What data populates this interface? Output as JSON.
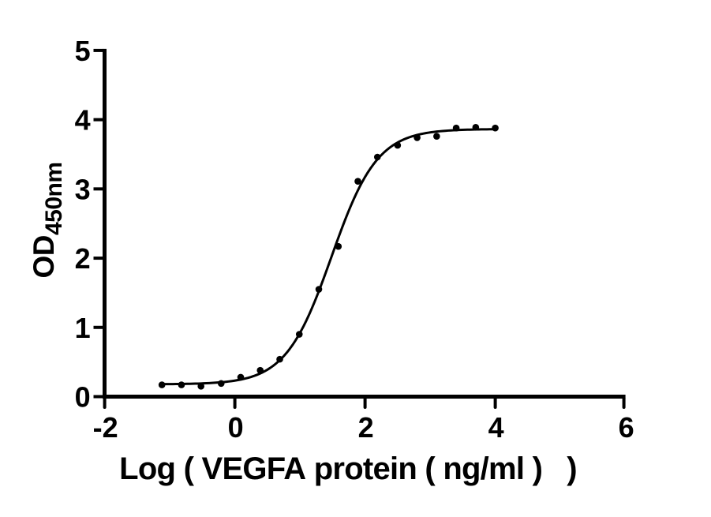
{
  "chart_data": {
    "type": "scatter",
    "title": "",
    "xlabel": "Log ( VEGFA protein ( ng/ml )   )",
    "ylabel": "OD",
    "ylabel_sub": "450nm",
    "xlim": [
      -2,
      6
    ],
    "ylim": [
      0,
      5
    ],
    "xticks": [
      -2,
      0,
      2,
      4,
      6
    ],
    "yticks": [
      0,
      1,
      2,
      3,
      4,
      5
    ],
    "grid": false,
    "legend_position": "none",
    "series": [
      {
        "name": "measured-od-points",
        "type": "scatter",
        "x": [
          -1.12,
          -0.82,
          -0.52,
          -0.21,
          0.09,
          0.39,
          0.69,
          0.99,
          1.29,
          1.59,
          1.89,
          2.19,
          2.5,
          2.8,
          3.1,
          3.4,
          3.7,
          4.0
        ],
        "y": [
          0.17,
          0.17,
          0.15,
          0.19,
          0.28,
          0.38,
          0.54,
          0.9,
          1.55,
          2.17,
          3.11,
          3.46,
          3.63,
          3.74,
          3.76,
          3.88,
          3.89,
          3.88
        ]
      },
      {
        "name": "sigmoid-fit-curve",
        "type": "line",
        "fit": {
          "bottom": 0.178,
          "top": 3.865,
          "logec50": 1.485,
          "hill": 1.235
        },
        "x_start": -1.12,
        "x_end": 4.0
      }
    ],
    "colors": {
      "points": "#000000",
      "curve": "#000000",
      "axis": "#000000",
      "text": "#000000",
      "background": "#ffffff"
    }
  }
}
